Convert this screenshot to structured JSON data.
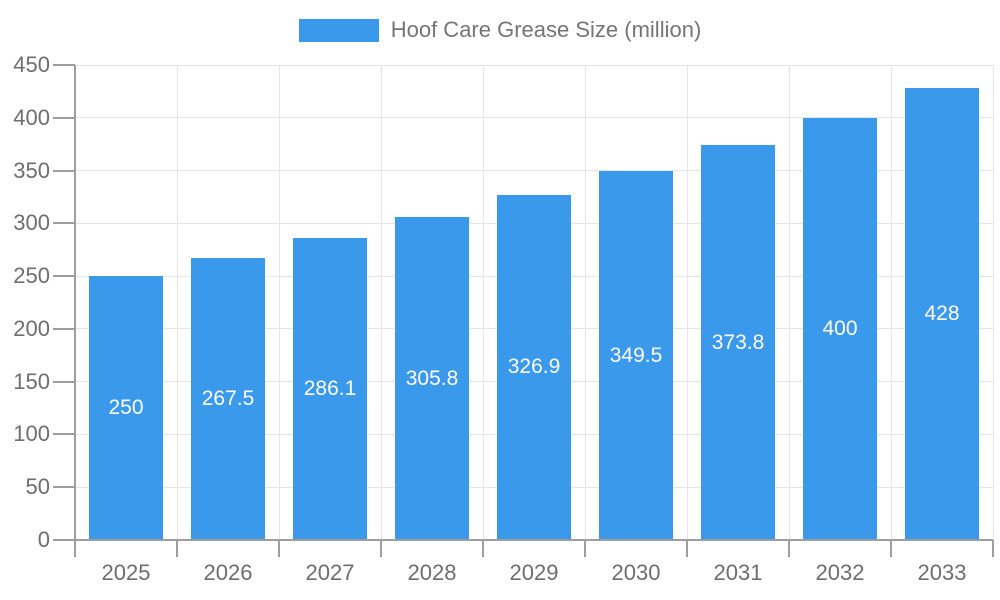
{
  "legend": {
    "label": "Hoof Care Grease Size (million)"
  },
  "colors": {
    "bar": "#3B99EC",
    "grid": "#e6e6e6",
    "axis": "#9e9e9e",
    "axis_text": "#6e6e6e",
    "legend_text": "#757575",
    "bar_label_text": "#ffffff",
    "background": "#ffffff"
  },
  "chart_data": {
    "type": "bar",
    "title": "Hoof Care Grease Size (million)",
    "categories": [
      "2025",
      "2026",
      "2027",
      "2028",
      "2029",
      "2030",
      "2031",
      "2032",
      "2033"
    ],
    "values": [
      250,
      267.5,
      286.1,
      305.8,
      326.9,
      349.5,
      373.8,
      400,
      428
    ],
    "value_labels": [
      "250",
      "267.5",
      "286.1",
      "305.8",
      "326.9",
      "349.5",
      "373.8",
      "400",
      "428"
    ],
    "xlabel": "",
    "ylabel": "",
    "ylim": [
      0,
      450
    ],
    "yticks": [
      0,
      50,
      100,
      150,
      200,
      250,
      300,
      350,
      400,
      450
    ],
    "grid": true,
    "legend_position": "top",
    "bar_label_position": "inside-middle"
  }
}
